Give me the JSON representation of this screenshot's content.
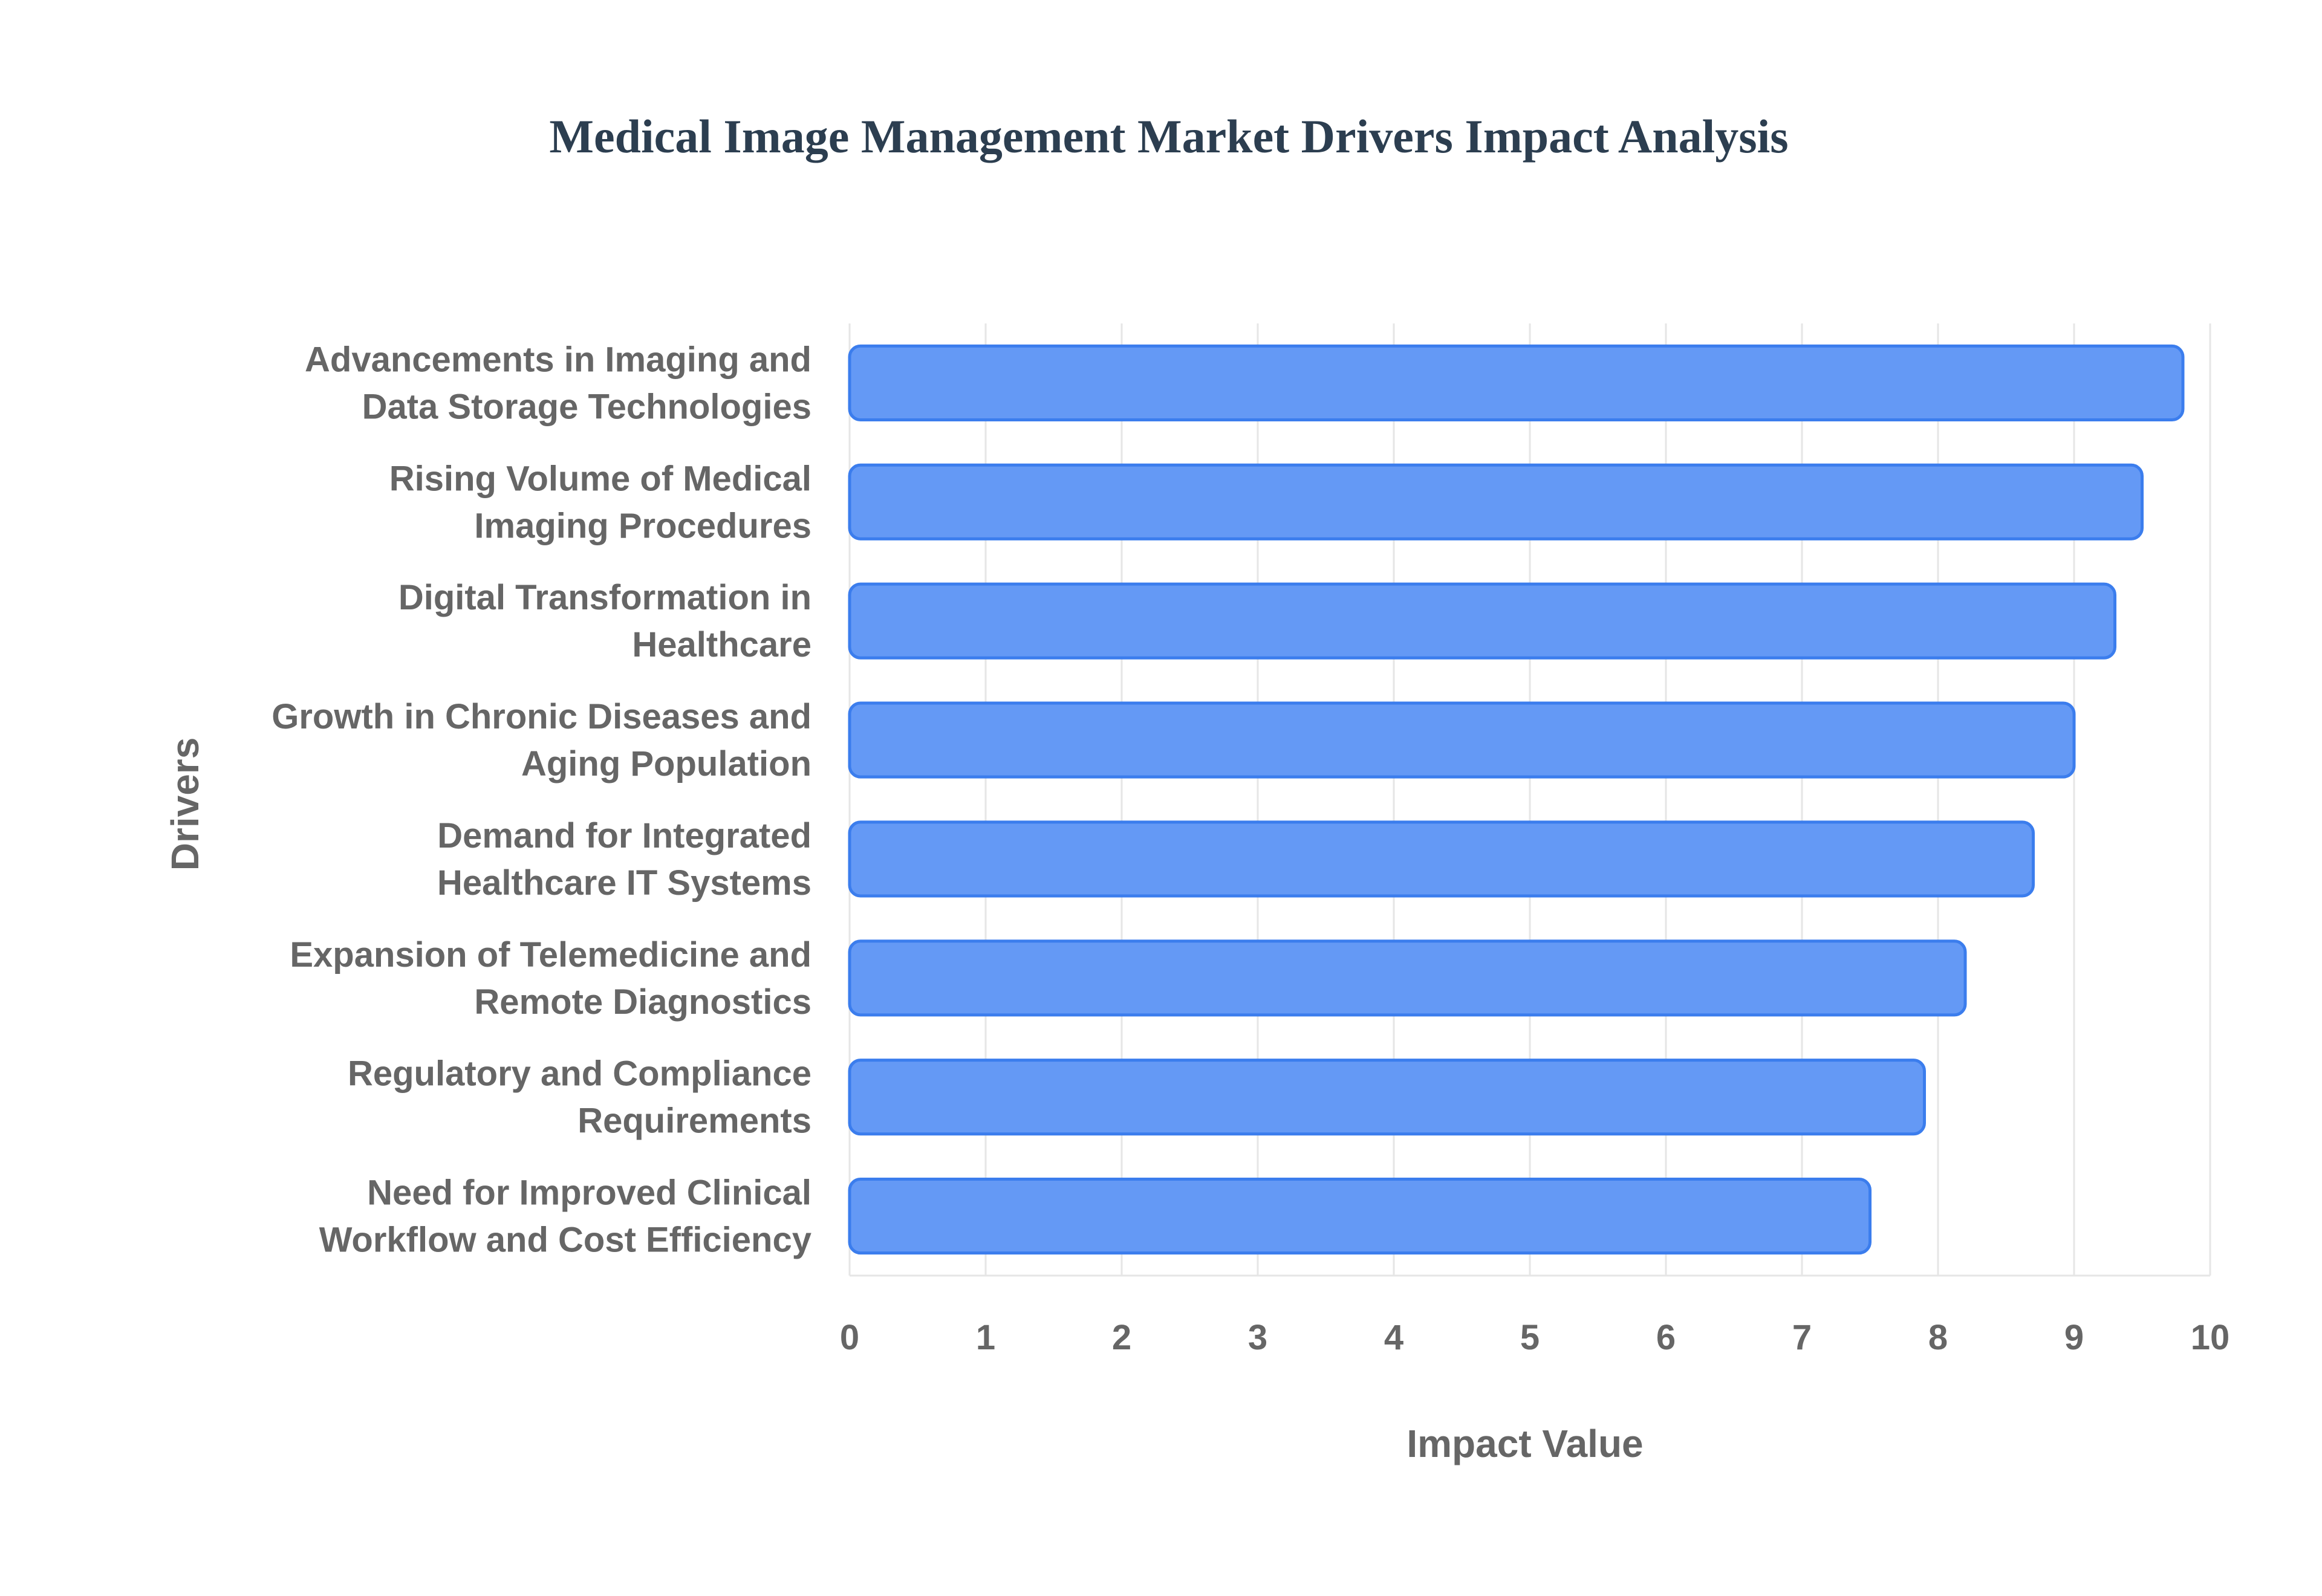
{
  "chart_data": {
    "type": "bar",
    "orientation": "horizontal",
    "title": "Medical Image Management Market Drivers Impact Analysis",
    "xlabel": "Impact Value",
    "ylabel": "Drivers",
    "xlim": [
      0,
      10
    ],
    "xticks": [
      0,
      1,
      2,
      3,
      4,
      5,
      6,
      7,
      8,
      9,
      10
    ],
    "grid": true,
    "categories": [
      [
        "Advancements in Imaging and",
        "Data Storage Technologies"
      ],
      [
        "Rising Volume of Medical",
        "Imaging Procedures"
      ],
      [
        "Digital Transformation in",
        "Healthcare"
      ],
      [
        "Growth in Chronic Diseases and",
        "Aging Population"
      ],
      [
        "Demand for Integrated",
        "Healthcare IT Systems"
      ],
      [
        "Expansion of Telemedicine and",
        "Remote Diagnostics"
      ],
      [
        "Regulatory and Compliance",
        "Requirements"
      ],
      [
        "Need for Improved Clinical",
        "Workflow and Cost Efficiency"
      ]
    ],
    "values": [
      9.8,
      9.5,
      9.3,
      9.0,
      8.7,
      8.2,
      7.9,
      7.5
    ],
    "colors": {
      "bar_fill": "#6499f5",
      "bar_stroke": "#3b7ded",
      "title": "#2c3e50",
      "text": "#666666",
      "grid": "#e6e6e6"
    }
  }
}
